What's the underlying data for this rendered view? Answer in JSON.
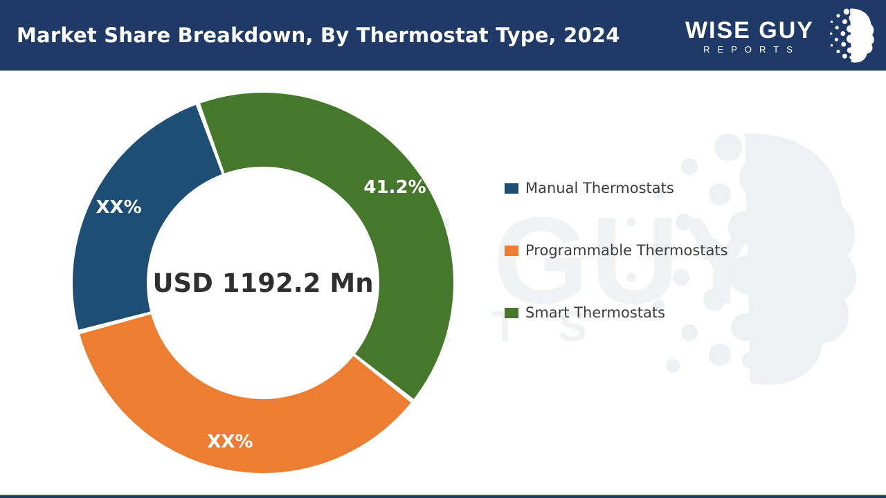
{
  "header": {
    "title": "Market Share Breakdown, By Thermostat Type, 2024",
    "logo": {
      "line1": "WISE GUY",
      "line2": "REPORTS"
    }
  },
  "watermark": {
    "line1": "WISE GUY",
    "line2": "REPORTS"
  },
  "colors": {
    "header_bg": "#203a68",
    "manual_blue": "#1f4e74",
    "programmable_orange": "#ed7d31",
    "smart_green": "#45782a",
    "center_text": "#2f2f2f",
    "watermark_gray": "#f1f2f4"
  },
  "chart_data": {
    "type": "pie",
    "donut": true,
    "title": "Market Share Breakdown, By Thermostat Type, 2024",
    "center_label": "USD 1192.2 Mn",
    "legend_position": "right",
    "start_angle_deg": 340,
    "draw_order": [
      2,
      1,
      0
    ],
    "series": [
      {
        "name": "Manual Thermostats",
        "color": "#1f4e74",
        "display_label": "XX%",
        "value_pct": 23.6
      },
      {
        "name": "Programmable Thermostats",
        "color": "#ed7d31",
        "display_label": "XX%",
        "value_pct": 35.2
      },
      {
        "name": "Smart Thermostats",
        "color": "#45782a",
        "display_label": "41.2%",
        "value_pct": 41.2
      }
    ]
  }
}
